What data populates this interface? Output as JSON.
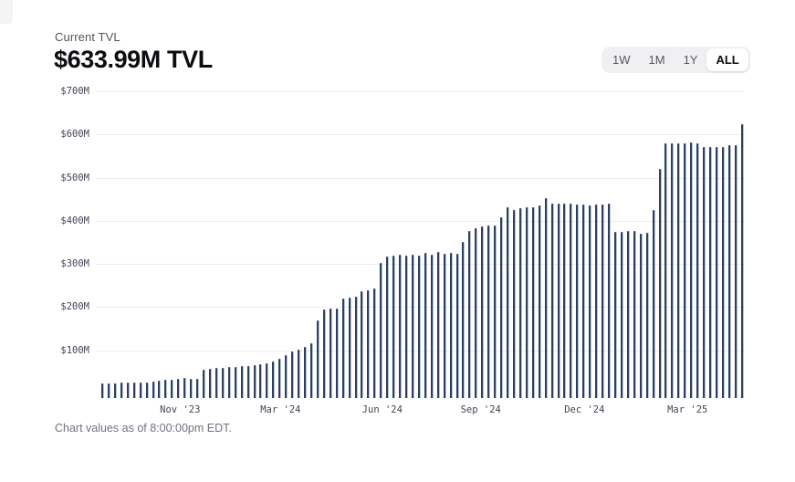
{
  "header": {
    "label": "Current TVL",
    "value": "$633.99M TVL"
  },
  "range_selector": {
    "options": [
      "1W",
      "1M",
      "1Y",
      "ALL"
    ],
    "active": "ALL"
  },
  "footer": {
    "text": "Chart values as of 8:00:00pm EDT."
  },
  "colors": {
    "bar": "#2f3f5e",
    "bar_highlight": "#5a82a5",
    "gridline": "#e9edf2",
    "tick_text": "#3f4655",
    "subtitle_gray": "#52525b",
    "footer_gray": "#6e7480",
    "control_bg": "#f0f0f2",
    "control_active_bg": "#ffffff"
  },
  "chart_data": {
    "type": "bar",
    "title": "Current TVL",
    "ylabel": "TVL",
    "unit": "$M",
    "ylim": [
      0,
      700
    ],
    "grid": true,
    "legend": false,
    "y_ticks": [
      {
        "label": "$700M",
        "value": 700
      },
      {
        "label": "$600M",
        "value": 600
      },
      {
        "label": "$500M",
        "value": 500
      },
      {
        "label": "$400M",
        "value": 400
      },
      {
        "label": "$300M",
        "value": 300
      },
      {
        "label": "$200M",
        "value": 200
      },
      {
        "label": "$100M",
        "value": 100
      }
    ],
    "x_ticks": [
      {
        "label": "Nov '23",
        "pos": 0.13
      },
      {
        "label": "Mar '24",
        "pos": 0.285
      },
      {
        "label": "Jun '24",
        "pos": 0.442
      },
      {
        "label": "Sep '24",
        "pos": 0.594
      },
      {
        "label": "Dec '24",
        "pos": 0.754
      },
      {
        "label": "Mar '25",
        "pos": 0.913
      }
    ],
    "values": [
      33,
      34,
      34,
      35,
      35,
      36,
      36,
      37,
      38,
      40,
      42,
      43,
      45,
      46,
      44,
      45,
      66,
      68,
      69,
      70,
      71,
      72,
      74,
      75,
      76,
      78,
      81,
      85,
      90,
      99,
      107,
      112,
      118,
      127,
      180,
      205,
      207,
      208,
      230,
      233,
      235,
      247,
      250,
      253,
      314,
      327,
      330,
      331,
      330,
      332,
      330,
      337,
      331,
      339,
      334,
      336,
      335,
      362,
      386,
      394,
      398,
      399,
      400,
      419,
      441,
      436,
      440,
      443,
      442,
      447,
      464,
      451,
      451,
      450,
      450,
      448,
      448,
      447,
      448,
      448,
      450,
      385,
      385,
      387,
      388,
      381,
      382,
      436,
      530,
      591,
      590,
      590,
      590,
      592,
      590,
      581,
      581,
      582,
      581,
      585,
      586,
      634
    ]
  }
}
